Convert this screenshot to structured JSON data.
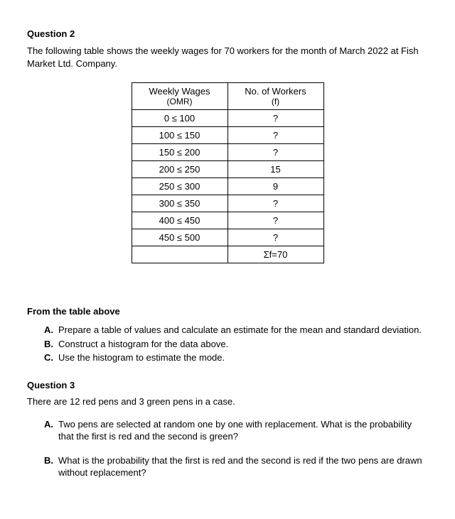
{
  "q2": {
    "title": "Question 2",
    "intro": "The following table shows the weekly wages for 70 workers for the month of March 2022 at Fish Market Ltd. Company.",
    "table": {
      "col1_header_top": "Weekly Wages",
      "col1_header_sub": "(OMR)",
      "col2_header_top": "No. of Workers",
      "col2_header_sub": "(f)",
      "rows": [
        {
          "wages": "0 ≤ 100",
          "f": "?"
        },
        {
          "wages": "100 ≤ 150",
          "f": "?"
        },
        {
          "wages": "150 ≤ 200",
          "f": "?"
        },
        {
          "wages": "200 ≤ 250",
          "f": "15"
        },
        {
          "wages": "250 ≤ 300",
          "f": "9"
        },
        {
          "wages": "300 ≤ 350",
          "f": "?"
        },
        {
          "wages": "400 ≤ 450",
          "f": "?"
        },
        {
          "wages": "450 ≤ 500",
          "f": "?"
        }
      ],
      "total_left": "",
      "total_right": "Σf=70"
    },
    "from": "From the table above",
    "parts": {
      "A": "Prepare a table of values and calculate an estimate for the mean and standard deviation.",
      "B": "Construct a histogram for the data above.",
      "C": "Use the histogram to estimate the mode."
    }
  },
  "q3": {
    "title": "Question 3",
    "intro": "There are 12 red pens and 3 green pens in a case.",
    "parts": {
      "A": "Two pens are selected at random one by one with replacement. What is the probability that the first is red and the second is green?",
      "B": "What is the probability that the first is red and the second is red if the two pens are drawn without replacement?"
    }
  }
}
